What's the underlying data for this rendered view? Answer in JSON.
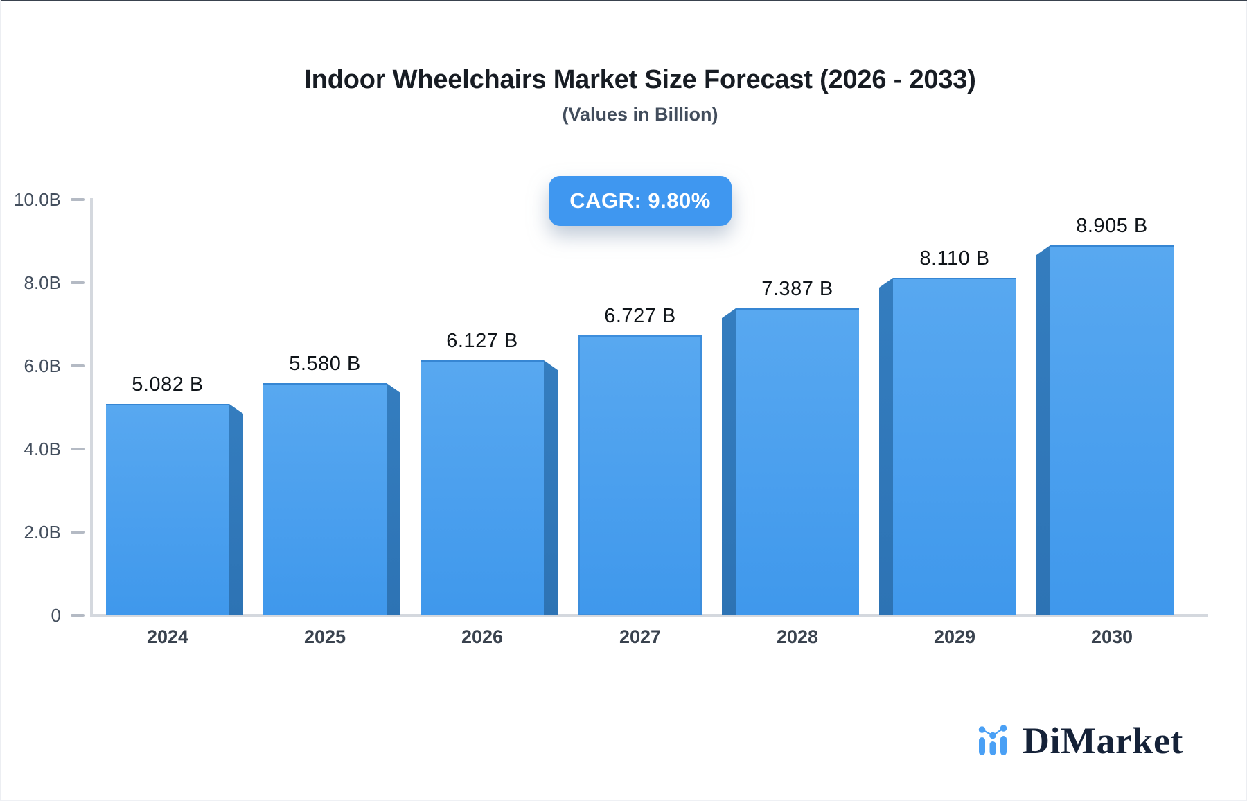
{
  "header": {
    "title": "Indoor Wheelchairs Market Size Forecast (2026 - 2033)",
    "subtitle": "(Values in Billion)"
  },
  "badge": {
    "label": "CAGR: 9.80%"
  },
  "chart_data": {
    "type": "bar",
    "title": "Indoor Wheelchairs Market Size Forecast (2026 - 2033)",
    "subtitle": "(Values in Billion)",
    "cagr": "9.80%",
    "categories": [
      "2024",
      "2025",
      "2026",
      "2027",
      "2028",
      "2029",
      "2030"
    ],
    "values": [
      5.082,
      5.58,
      6.127,
      6.727,
      7.387,
      8.11,
      8.905
    ],
    "value_labels": [
      "5.082 B",
      "5.580 B",
      "6.127 B",
      "6.727 B",
      "7.387 B",
      "8.110 B",
      "8.905 B"
    ],
    "ylabel": "",
    "xlabel": "",
    "ylim": [
      0,
      10
    ],
    "yticks": [
      {
        "label": "10.0B",
        "value": 10
      },
      {
        "label": "8.0B",
        "value": 8
      },
      {
        "label": "6.0B",
        "value": 6
      },
      {
        "label": "4.0B",
        "value": 4
      },
      {
        "label": "2.0B",
        "value": 2
      },
      {
        "label": "0",
        "value": 0
      }
    ],
    "grid": false,
    "legend": "none",
    "bar_style": "3d-extruded"
  },
  "logo": {
    "wordmark": "DiMarket",
    "icon": "bar-chart-logo-icon"
  },
  "colors": {
    "accent": "#3f97f0",
    "bar_top": "#58a8f0",
    "bar_bottom": "#3f98ec",
    "bar_side": "#2d73b4",
    "bar_outline": "#3d8edc",
    "axis_line": "#d4d8de",
    "tick": "#b4bac4",
    "text_dark": "#171c23",
    "text_medium": "#424d5c",
    "logo_blue": "#4aa0f5",
    "logo_navy": "#152238",
    "top_border": "#39424e"
  }
}
